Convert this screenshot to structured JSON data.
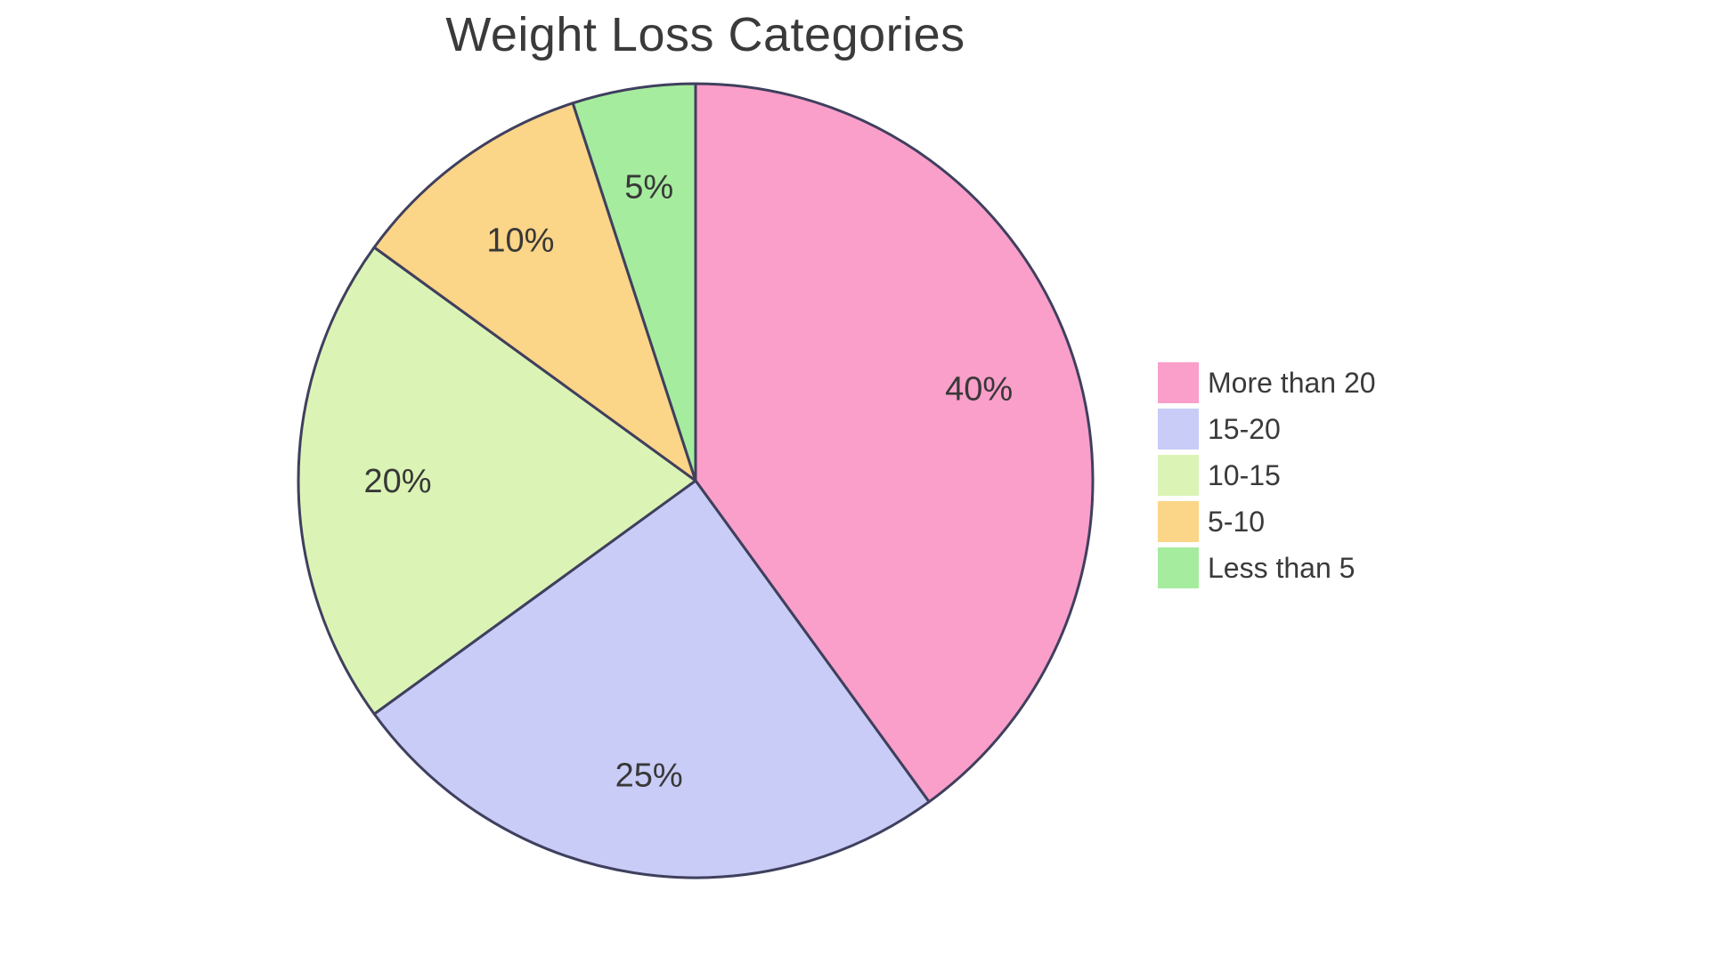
{
  "page": {
    "background_color": "#ffffff",
    "text_color": "#3a3a3a"
  },
  "chart_data": {
    "type": "pie",
    "title": "Weight Loss Categories",
    "legend_position": "right",
    "start_angle": "top",
    "direction": "clockwise",
    "stroke_color": "#3f3f5e",
    "label_color": "#383838",
    "slices": [
      {
        "label": "More than 20",
        "value": 40,
        "pct_label": "40%",
        "color": "#f99fc9"
      },
      {
        "label": "15-20",
        "value": 25,
        "pct_label": "25%",
        "color": "#c9ccf6"
      },
      {
        "label": "10-15",
        "value": 20,
        "pct_label": "20%",
        "color": "#dbf4b5"
      },
      {
        "label": "5-10",
        "value": 10,
        "pct_label": "10%",
        "color": "#fbd588"
      },
      {
        "label": "Less than 5",
        "value": 5,
        "pct_label": "5%",
        "color": "#a6ec9e"
      }
    ]
  }
}
